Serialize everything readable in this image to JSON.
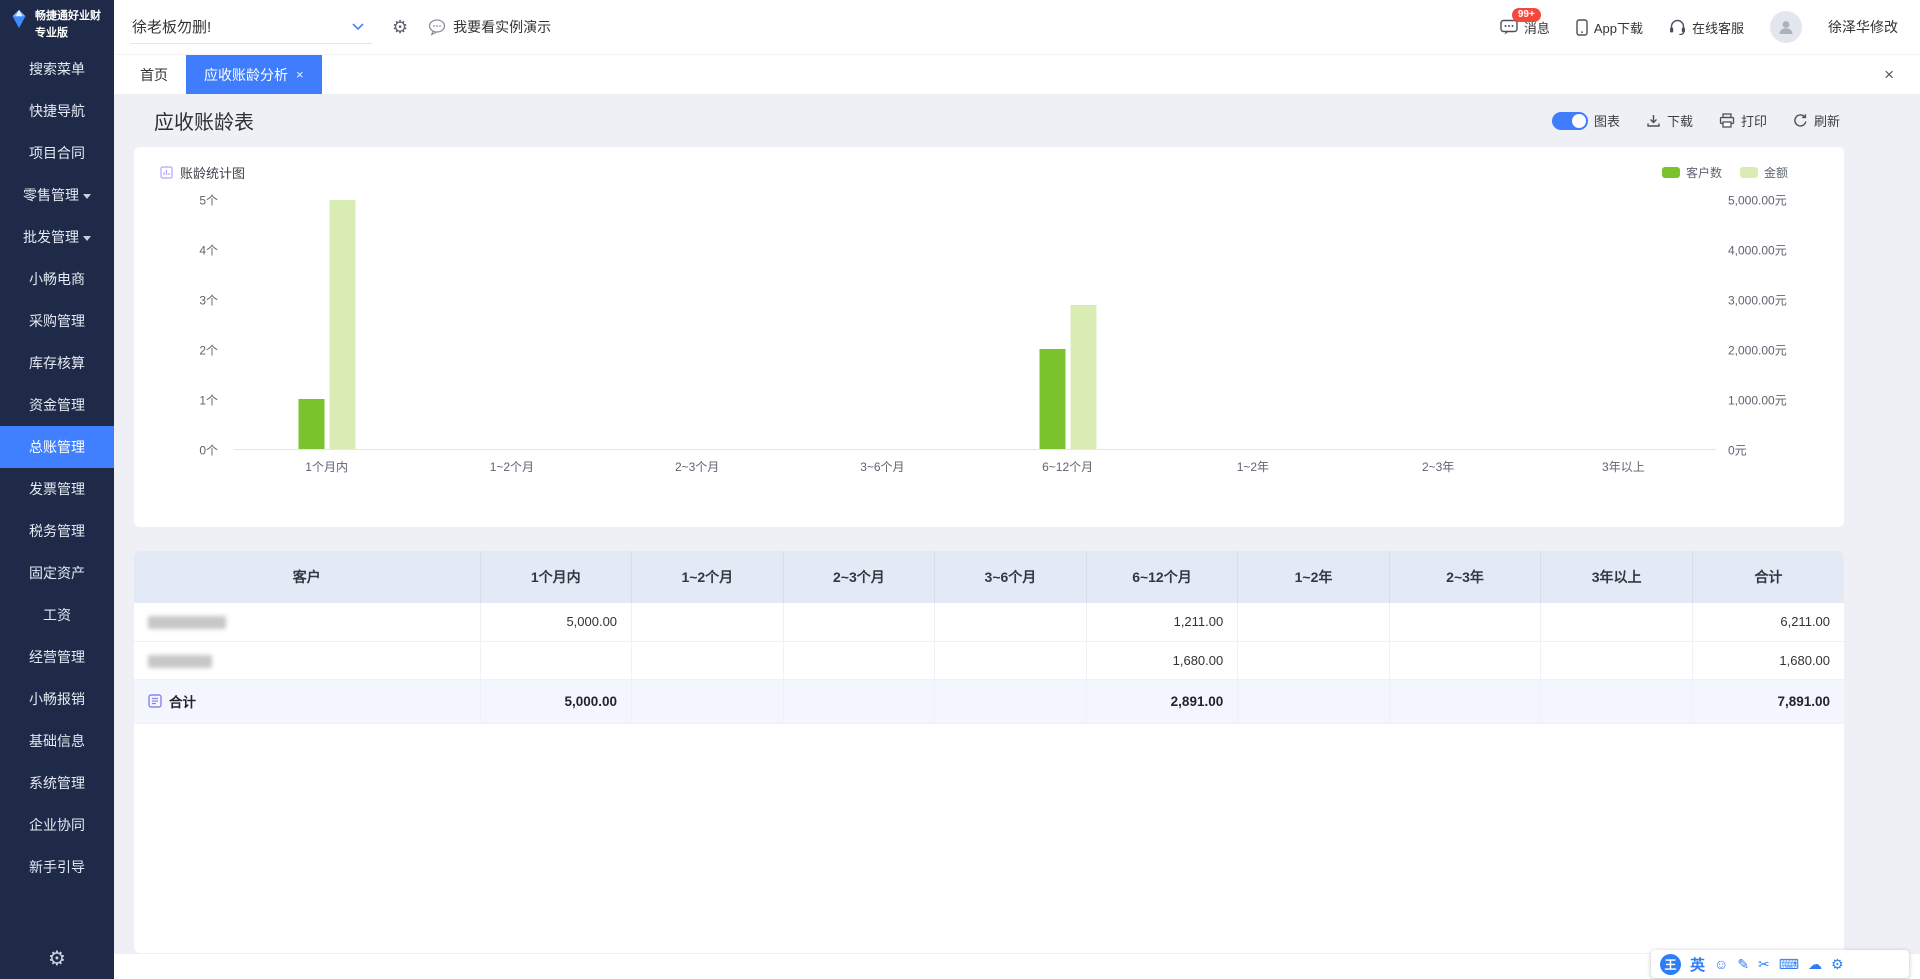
{
  "sidebar": {
    "logo_title": "畅捷通好业财",
    "logo_subtitle": "专业版",
    "items": [
      {
        "label": "搜索菜单"
      },
      {
        "label": "快捷导航"
      },
      {
        "label": "项目合同"
      },
      {
        "label": "零售管理",
        "arrow": true
      },
      {
        "label": "批发管理",
        "arrow": true
      },
      {
        "label": "小畅电商"
      },
      {
        "label": "采购管理"
      },
      {
        "label": "库存核算"
      },
      {
        "label": "资金管理"
      },
      {
        "label": "总账管理",
        "active": true
      },
      {
        "label": "发票管理"
      },
      {
        "label": "税务管理"
      },
      {
        "label": "固定资产"
      },
      {
        "label": "工资"
      },
      {
        "label": "经营管理"
      },
      {
        "label": "小畅报销"
      },
      {
        "label": "基础信息"
      },
      {
        "label": "系统管理"
      },
      {
        "label": "企业协同"
      },
      {
        "label": "新手引导"
      }
    ]
  },
  "topbar": {
    "company_select": "徐老板勿删!",
    "demo_text": "我要看实例演示",
    "messages_label": "消息",
    "messages_badge": "99+",
    "app_download_label": "App下载",
    "online_service_label": "在线客服",
    "username": "徐泽华修改"
  },
  "tabs": [
    {
      "label": "首页"
    },
    {
      "label": "应收账龄分析",
      "active": true,
      "closable": true
    }
  ],
  "ui": {
    "close_glyph": "×"
  },
  "page": {
    "title": "应收账龄表",
    "chart_toggle_label": "图表",
    "chart_toggle_on": true,
    "download_label": "下载",
    "print_label": "打印",
    "refresh_label": "刷新"
  },
  "chart": {
    "title": "账龄统计图",
    "legend": [
      {
        "label": "客户数",
        "color": "#7bc32d"
      },
      {
        "label": "金额",
        "color": "#d9ecb4"
      }
    ]
  },
  "chart_data": {
    "type": "bar",
    "title": "账龄统计图",
    "categories": [
      "1个月内",
      "1~2个月",
      "2~3个月",
      "3~6个月",
      "6~12个月",
      "1~2年",
      "2~3年",
      "3年以上"
    ],
    "series": [
      {
        "name": "客户数",
        "axis": "left",
        "color": "#7bc32d",
        "values": [
          1,
          0,
          0,
          0,
          2,
          0,
          0,
          0
        ]
      },
      {
        "name": "金额",
        "axis": "right",
        "color": "#d9ecb4",
        "values": [
          5000,
          0,
          0,
          0,
          2891,
          0,
          0,
          0
        ]
      }
    ],
    "left_axis": {
      "max": 5,
      "min": 0,
      "ticks": [
        "5个",
        "4个",
        "3个",
        "2个",
        "1个",
        "0个"
      ]
    },
    "right_axis": {
      "max": 5000,
      "min": 0,
      "ticks": [
        "5,000.00元",
        "4,000.00元",
        "3,000.00元",
        "2,000.00元",
        "1,000.00元",
        "0元"
      ]
    },
    "grid": false,
    "legend_position": "top-right"
  },
  "table": {
    "headers": [
      "客户",
      "1个月内",
      "1~2个月",
      "2~3个月",
      "3~6个月",
      "6~12个月",
      "1~2年",
      "2~3年",
      "3年以上",
      "合计"
    ],
    "rows": [
      {
        "customer_redacted": true,
        "values": [
          "5,000.00",
          "",
          "",
          "",
          "1,211.00",
          "",
          "",
          "",
          "6,211.00"
        ]
      },
      {
        "customer_redacted": true,
        "values": [
          "",
          "",
          "",
          "",
          "1,680.00",
          "",
          "",
          "",
          "1,680.00"
        ]
      }
    ],
    "total": {
      "label": "合计",
      "values": [
        "5,000.00",
        "",
        "",
        "",
        "2,891.00",
        "",
        "",
        "",
        "7,891.00"
      ]
    }
  },
  "ime": {
    "logo": "王",
    "mode": "英"
  }
}
